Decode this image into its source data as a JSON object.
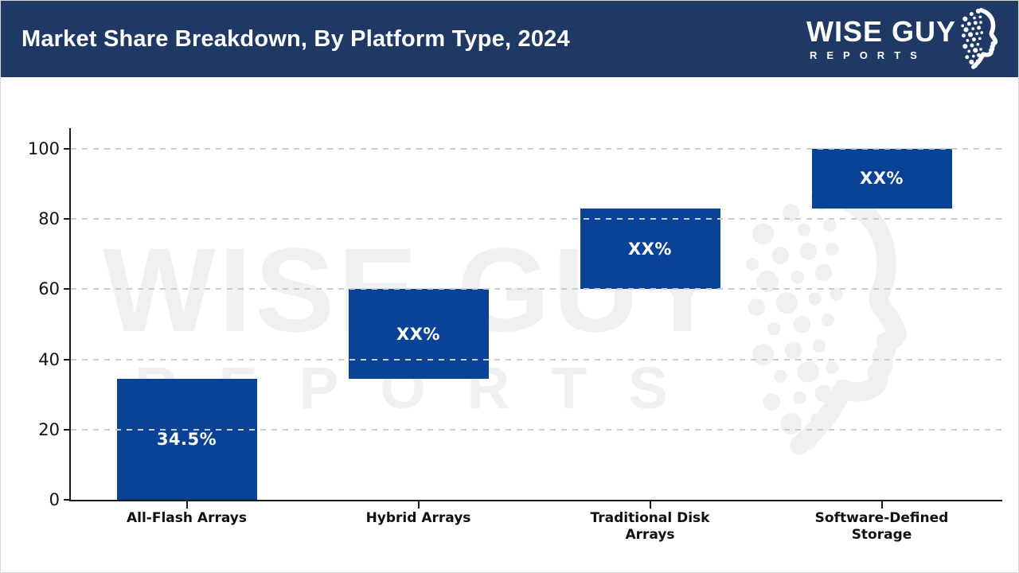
{
  "header": {
    "title": "Market Share Breakdown, By Platform Type, 2024",
    "logo": {
      "line1": "WISE GUY",
      "line2": "REPORTS"
    }
  },
  "watermark": {
    "line1": "WISE GUY",
    "line2": "REPORTS"
  },
  "chart_data": {
    "type": "bar",
    "subtype": "waterfall-floating-bars",
    "title": "Market Share Breakdown, By Platform Type, 2024",
    "categories": [
      "All-Flash Arrays",
      "Hybrid Arrays",
      "Traditional Disk\nArrays",
      "Software-Defined\nStorage"
    ],
    "series": [
      {
        "name": "Market share (%)",
        "segments": [
          {
            "category": "All-Flash Arrays",
            "start": 0,
            "end": 34.5,
            "label": "34.5%"
          },
          {
            "category": "Hybrid Arrays",
            "start": 34.5,
            "end": 60,
            "label": "XX%"
          },
          {
            "category": "Traditional Disk Arrays",
            "start": 60,
            "end": 83,
            "label": "XX%"
          },
          {
            "category": "Software-Defined Storage",
            "start": 83,
            "end": 100,
            "label": "XX%"
          }
        ]
      }
    ],
    "xlabel": "",
    "ylabel": "",
    "ylim": [
      0,
      100
    ],
    "yticks": [
      0,
      20,
      40,
      60,
      80,
      100
    ],
    "grid": "horizontal-dashed",
    "legend": "none",
    "colors": {
      "bar": "#0a4296",
      "header_bg": "#203864",
      "watermark": "#f0f0f2",
      "grid": "#cdcdcd",
      "axis": "#1a1a1a"
    }
  }
}
